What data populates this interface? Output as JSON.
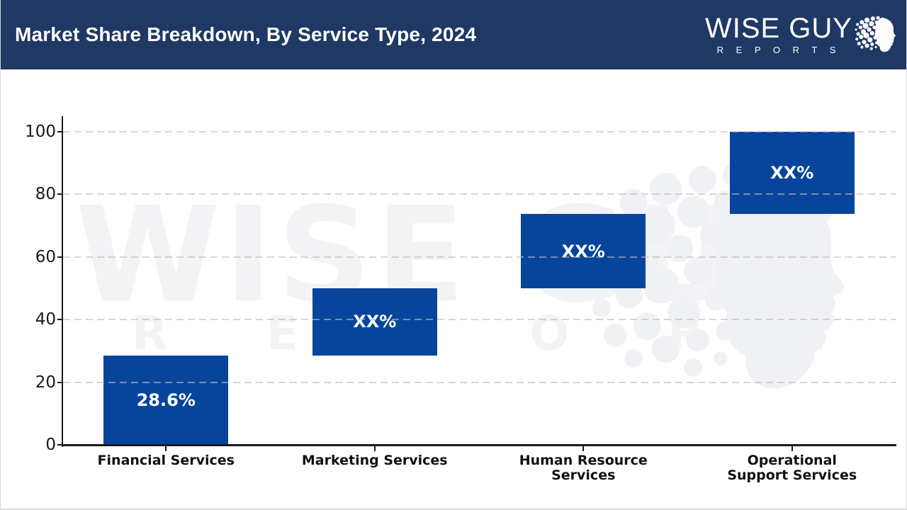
{
  "header": {
    "title": "Market Share Breakdown, By Service Type, 2024",
    "background_color": "#1f3864",
    "logo": {
      "line1": "WISE GUY",
      "line2": "R E P O R T S",
      "icon": "dotted-head-profile"
    }
  },
  "watermark": {
    "line1": "WISE GUY",
    "line2": "R E P O R T S",
    "icon": "dotted-head-profile",
    "color": "#f3f3f5"
  },
  "chart_data": {
    "type": "bar",
    "subtype": "floating-segment waterfall, single series",
    "title": "Market Share Breakdown, By Service Type, 2024",
    "categories": [
      {
        "lines": [
          "Financial Services"
        ]
      },
      {
        "lines": [
          "Marketing Services"
        ]
      },
      {
        "lines": [
          "Human Resource",
          "Services"
        ]
      },
      {
        "lines": [
          "Operational",
          "Support Services"
        ]
      }
    ],
    "series": [
      {
        "name": "Market share (%)",
        "segments": [
          {
            "category": "Financial Services",
            "start": 0,
            "end": 28.6,
            "label": "28.6%"
          },
          {
            "category": "Marketing Services",
            "start": 28.6,
            "end": 50,
            "label": "XX%"
          },
          {
            "category": "Human Resource Services",
            "start": 50,
            "end": 73.7,
            "label": "XX%"
          },
          {
            "category": "Operational Support Services",
            "start": 73.7,
            "end": 100,
            "label": "XX%"
          }
        ]
      }
    ],
    "xlabel": "",
    "ylabel": "",
    "yticks": [
      "0",
      "20",
      "40",
      "60",
      "80",
      "100"
    ],
    "ytick_values": [
      0,
      20,
      40,
      60,
      80,
      100
    ],
    "ylim": [
      0,
      105
    ],
    "grid": "horizontal dashed gridlines, drawn over bars",
    "legend": "none",
    "bar_color": "#07459c",
    "bar_label_color": "#ffffff",
    "grid_color": "#bcbcbc",
    "axis_color": "#1a1a1a"
  }
}
